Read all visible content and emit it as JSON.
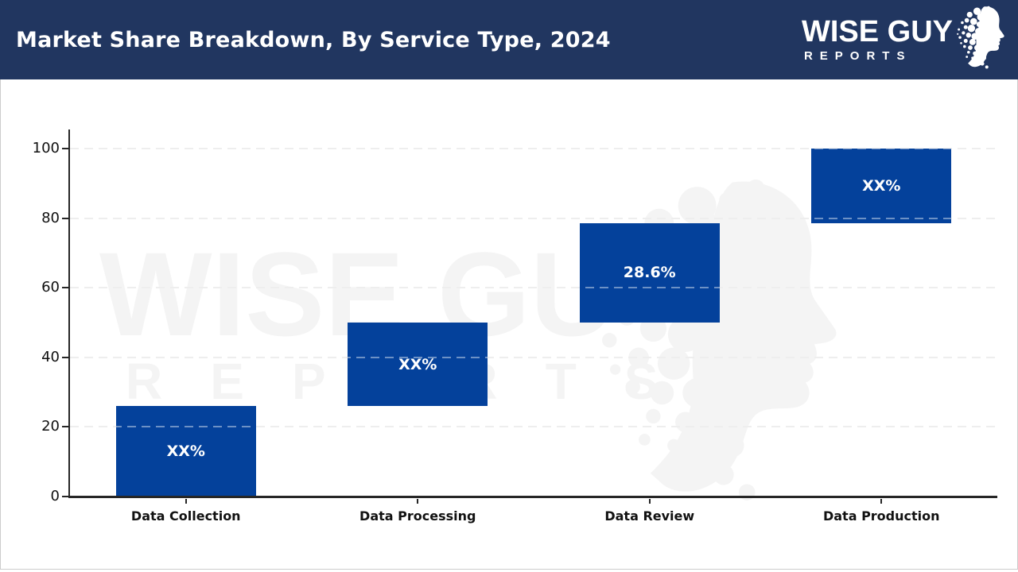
{
  "header": {
    "title": "Market Share Breakdown, By Service Type, 2024",
    "logo": {
      "line1": "WISE GUY",
      "line2": "REPORTS"
    }
  },
  "watermark": {
    "line1": "WISE GUY",
    "line2": "REPORTS"
  },
  "chart_data": {
    "type": "bar",
    "subtype": "waterfall",
    "title": "Market Share Breakdown, By Service Type, 2024",
    "categories": [
      "Data Collection",
      "Data Processing",
      "Data Review",
      "Data Production"
    ],
    "segments": [
      {
        "category": "Data Collection",
        "start": 0,
        "end": 26,
        "label": "XX%"
      },
      {
        "category": "Data Processing",
        "start": 26,
        "end": 50,
        "label": "XX%"
      },
      {
        "category": "Data Review",
        "start": 50,
        "end": 78.6,
        "label": "28.6%"
      },
      {
        "category": "Data Production",
        "start": 78.6,
        "end": 100,
        "label": "XX%"
      }
    ],
    "xlabel": "",
    "ylabel": "",
    "ylim": [
      0,
      100
    ],
    "yticks": [
      0,
      20,
      40,
      60,
      80,
      100
    ],
    "grid": "horizontal-dashed",
    "legend": "none",
    "bar_color": "#04419b",
    "bar_label_color": "#ffffff"
  },
  "colors": {
    "header_bg": "#213660",
    "bar": "#04419b",
    "grid": "#e2e2e2",
    "axis": "#262626",
    "tick_text": "#111111",
    "watermark": "#f4f4f4"
  }
}
